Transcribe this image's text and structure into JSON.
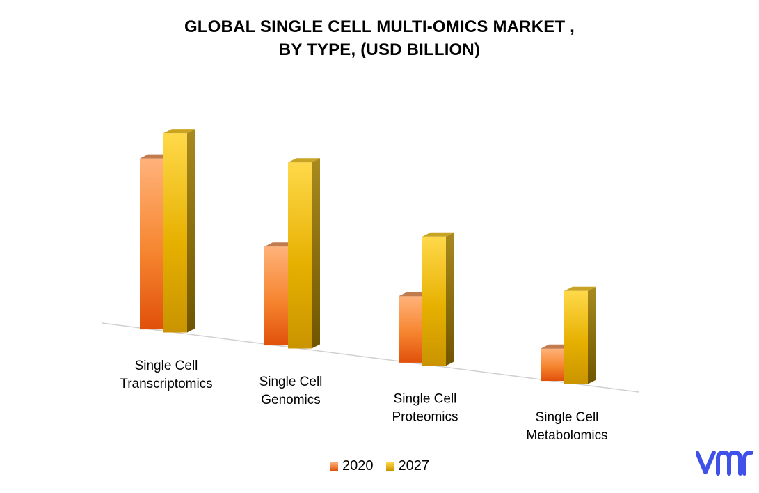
{
  "header": {
    "title_line1": "GLOBAL SINGLE CELL MULTI-OMICS MARKET ,",
    "title_line2": "BY TYPE, (USD BILLION)"
  },
  "chart_data": {
    "type": "bar",
    "title": "GLOBAL SINGLE CELL MULTI-OMICS MARKET , BY TYPE, (USD BILLION)",
    "categories": [
      [
        "Single Cell",
        "Transcriptomics"
      ],
      [
        "Single Cell",
        "Genomics"
      ],
      [
        "Single Cell",
        "Proteomics"
      ],
      [
        "Single Cell",
        "Metabolomics"
      ]
    ],
    "series": [
      {
        "name": "2020",
        "values": [
          0.9,
          0.52,
          0.35,
          0.17
        ],
        "color": "#f07a24"
      },
      {
        "name": "2027",
        "values": [
          1.05,
          0.98,
          0.68,
          0.49
        ],
        "color": "#d9a800"
      }
    ],
    "ylim": [
      0,
      1.1
    ],
    "grid": false,
    "legend_position": "bottom",
    "style": "3d-clustered-column"
  },
  "legend": {
    "items": [
      "2020",
      "2027"
    ]
  },
  "logo": {
    "name": "vmr-logo",
    "color": "#3f51e8"
  }
}
